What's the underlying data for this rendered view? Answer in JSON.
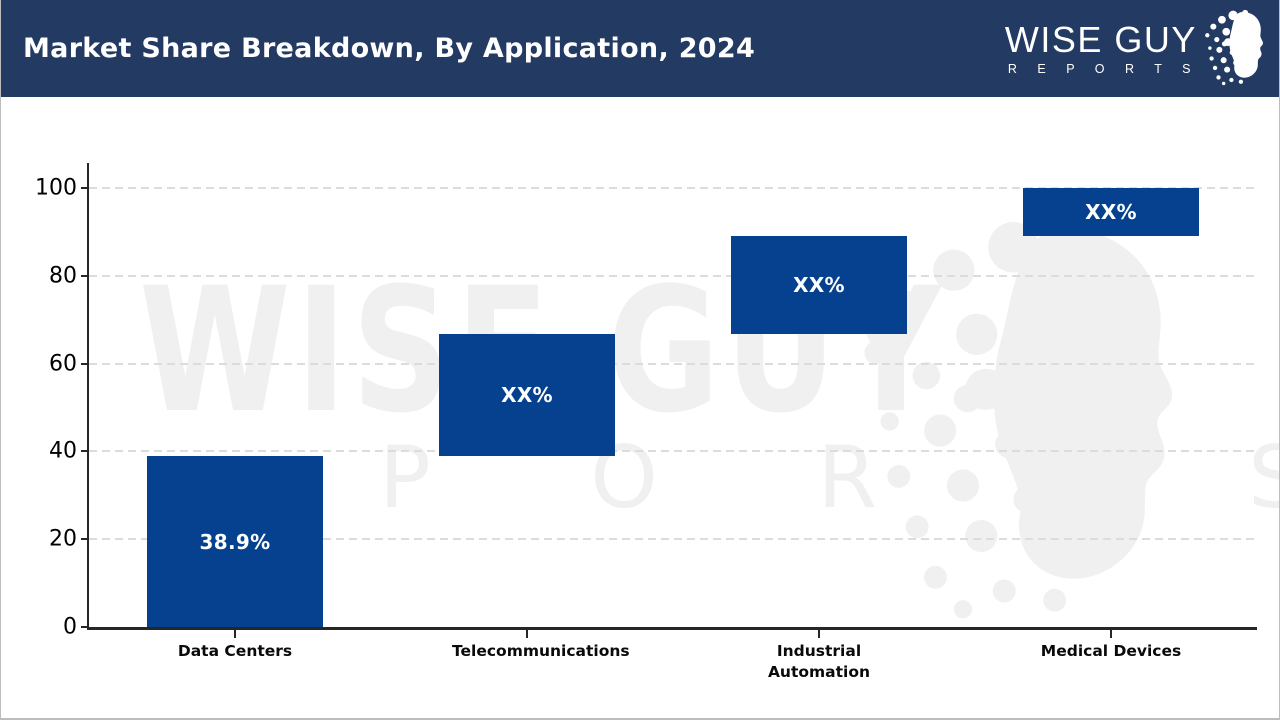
{
  "header": {
    "title": "Market Share Breakdown, By Application, 2024",
    "logo": {
      "wordmark": "WISE GUY",
      "subtitle": "R E P O R T S"
    }
  },
  "watermark": {
    "line1": "WISE GUY",
    "line2": "P O R T S"
  },
  "chart_data": {
    "type": "bar",
    "subtype": "waterfall",
    "title": "Market Share Breakdown, By Application, 2024",
    "categories": [
      "Data Centers",
      "Telecommunications",
      "Industrial Automation",
      "Medical Devices"
    ],
    "segments": [
      {
        "category": "Data Centers",
        "start": 0,
        "end": 38.9,
        "label": "38.9%"
      },
      {
        "category": "Telecommunications",
        "start": 38.9,
        "end": 66.7,
        "label": "XX%"
      },
      {
        "category": "Industrial Automation",
        "start": 66.7,
        "end": 89.1,
        "label": "XX%"
      },
      {
        "category": "Medical Devices",
        "start": 89.1,
        "end": 100,
        "label": "XX%"
      }
    ],
    "yticks": [
      0,
      20,
      40,
      60,
      80,
      100
    ],
    "ylim": [
      0,
      105
    ],
    "xlabel": "",
    "ylabel": "",
    "legend": "none",
    "grid": "horizontal-dashed",
    "bar_color": "#05418f",
    "bar_label_color": "#ffffff"
  },
  "colors": {
    "header_bg": "#233a63",
    "bar_blue": "#05418f",
    "grid": "#dcdcdc",
    "axis": "#262626",
    "watermark": "#f0f0f0",
    "page_border": "#bdbdbd"
  }
}
